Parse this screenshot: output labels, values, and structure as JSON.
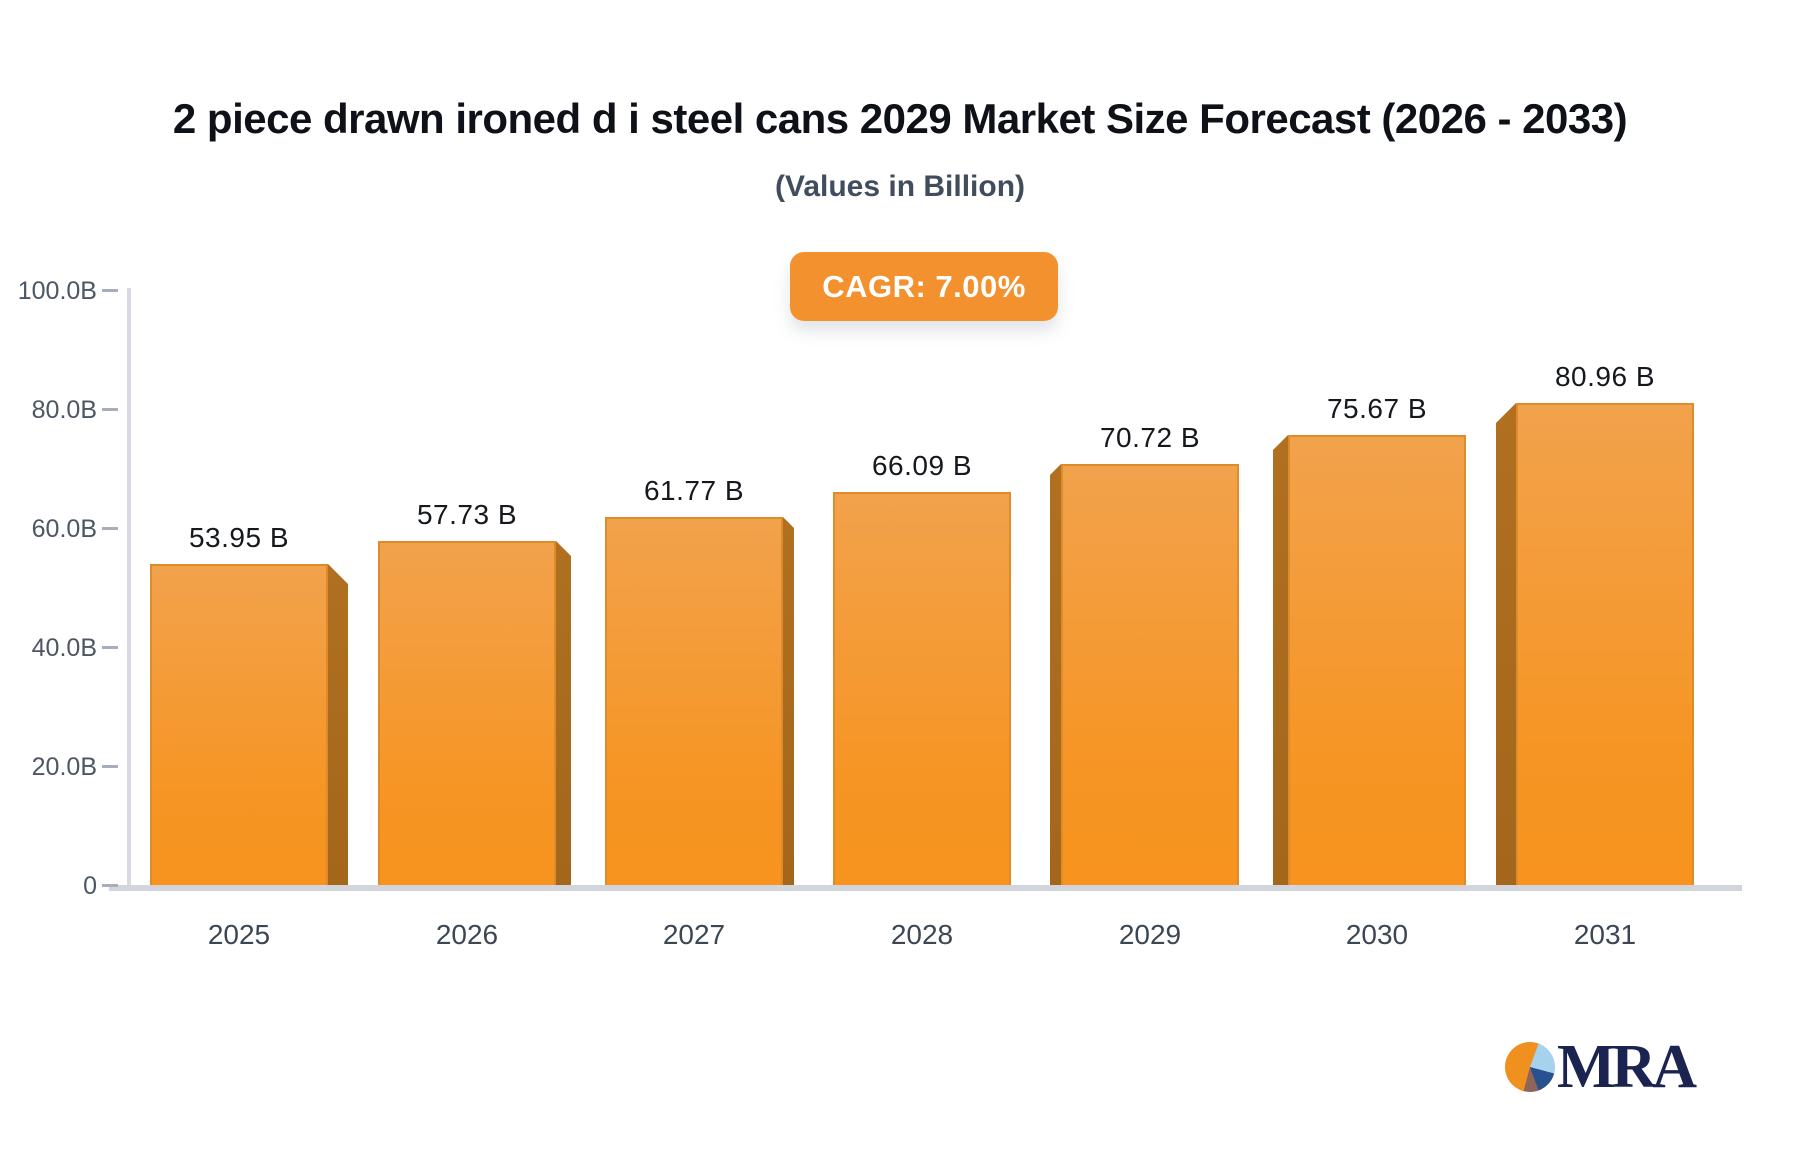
{
  "header": {
    "title": "2 piece drawn ironed d i steel cans 2029 Market Size Forecast (2026 - 2033)",
    "subtitle": "(Values in Billion)"
  },
  "badge": {
    "label": "CAGR: 7.00%",
    "bg_color": "#f2912d",
    "text_color": "#ffffff"
  },
  "chart_data": {
    "type": "bar",
    "title": "2 piece drawn ironed d i steel cans 2029 Market Size Forecast (2026 - 2033)",
    "subtitle": "(Values in Billion)",
    "cagr": "7.00%",
    "categories": [
      "2025",
      "2026",
      "2027",
      "2028",
      "2029",
      "2030",
      "2031"
    ],
    "values": [
      53.95,
      57.73,
      61.77,
      66.09,
      70.72,
      75.67,
      80.96
    ],
    "value_labels": [
      "53.95 B",
      "57.73 B",
      "61.77 B",
      "66.09 B",
      "70.72 B",
      "75.67 B",
      "80.96 B"
    ],
    "unit": "Billion",
    "xlabel": "",
    "ylabel": "",
    "ylim": [
      0,
      100
    ],
    "ytick_values": [
      100,
      80,
      60,
      40,
      20,
      0
    ],
    "ytick_labels": [
      "100.0B",
      "80.0B",
      "60.0B",
      "40.0B",
      "20.0B",
      "0"
    ],
    "grid": false,
    "legend": false,
    "bar_style": "3d",
    "colors": {
      "bar_top": "#f2a24c",
      "bar_bottom": "#f7931e",
      "bar_side": "#a8671c",
      "axis_line": "#d2d5db",
      "axis_label": "#4c5765",
      "value_label": "#15181d"
    }
  },
  "logo": {
    "text": "MRA",
    "text_color": "#1b2450",
    "pie_colors": {
      "orange": "#f0901f",
      "light_blue": "#a7d2ee",
      "navy": "#27518f",
      "brown": "#8f655a"
    }
  }
}
